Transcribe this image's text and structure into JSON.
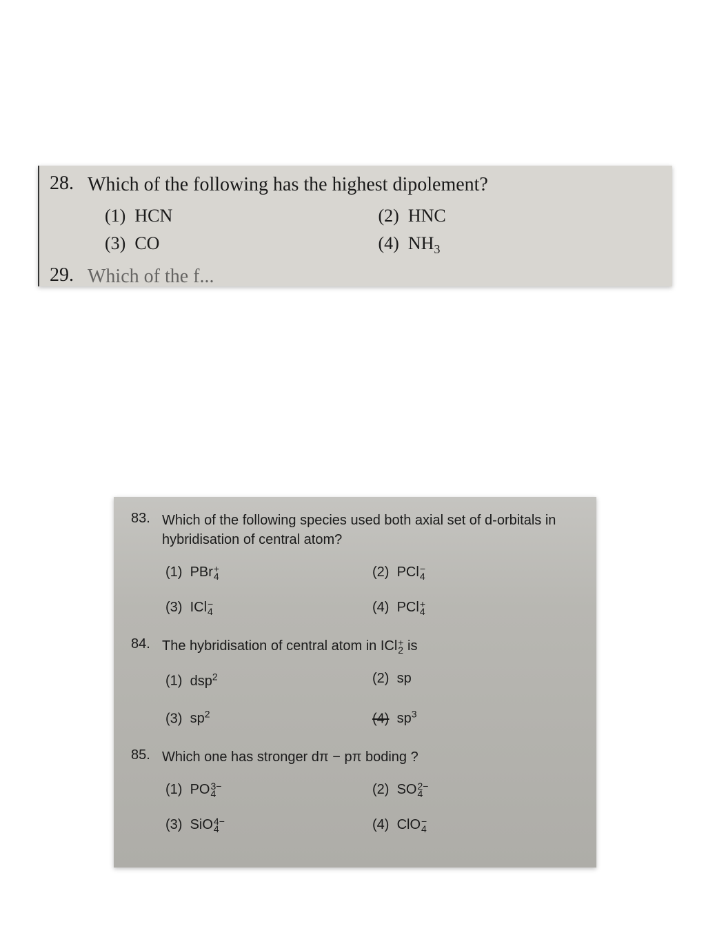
{
  "top_snippet": {
    "background_color": "#d8d6d1",
    "text_color": "#1a1a1a",
    "q28": {
      "number": "28.",
      "text": "Which of the following has the highest dipolement?",
      "options": {
        "opt1": {
          "num": "(1)",
          "formula": "HCN"
        },
        "opt2": {
          "num": "(2)",
          "formula": "HNC"
        },
        "opt3": {
          "num": "(3)",
          "formula": "CO"
        },
        "opt4": {
          "num": "(4)",
          "formula_base": "NH",
          "formula_sub": "3"
        }
      }
    },
    "q29": {
      "number": "29.",
      "text_partial": "Which of the f..."
    }
  },
  "bottom_snippet": {
    "background_color": "#b8b7b2",
    "text_color": "#1a1a1a",
    "q83": {
      "number": "83.",
      "text": "Which of the following species used both axial set of d-orbitals in hybridisation of central atom?",
      "options": {
        "opt1": {
          "num": "(1)",
          "base": "PBr",
          "sub": "4",
          "sup": "+"
        },
        "opt2": {
          "num": "(2)",
          "base": "PCl",
          "sub": "4",
          "sup": "−"
        },
        "opt3": {
          "num": "(3)",
          "base": "ICl",
          "sub": "4",
          "sup": "−"
        },
        "opt4": {
          "num": "(4)",
          "base": "PCl",
          "sub": "4",
          "sup": "+"
        }
      }
    },
    "q84": {
      "number": "84.",
      "text_pre": "The hybridisation of central atom in ",
      "formula_base": "ICl",
      "formula_sub": "2",
      "formula_sup": "+",
      "text_post": " is",
      "options": {
        "opt1": {
          "num": "(1)",
          "base": "dsp",
          "sup": "2"
        },
        "opt2": {
          "num": "(2)",
          "text": "sp"
        },
        "opt3": {
          "num": "(3)",
          "base": "sp",
          "sup": "2"
        },
        "opt4": {
          "num": "(4)",
          "base": "sp",
          "sup": "3",
          "strike": true
        }
      }
    },
    "q85": {
      "number": "85.",
      "text": "Which one has stronger dπ − pπ boding ?",
      "options": {
        "opt1": {
          "num": "(1)",
          "base": "PO",
          "sub": "4",
          "sup": "3−"
        },
        "opt2": {
          "num": "(2)",
          "base": "SO",
          "sub": "4",
          "sup": "2−"
        },
        "opt3": {
          "num": "(3)",
          "base": "SiO",
          "sub": "4",
          "sup": "4−"
        },
        "opt4": {
          "num": "(4)",
          "base": "ClO",
          "sub": "4",
          "sup": "−"
        }
      }
    }
  }
}
